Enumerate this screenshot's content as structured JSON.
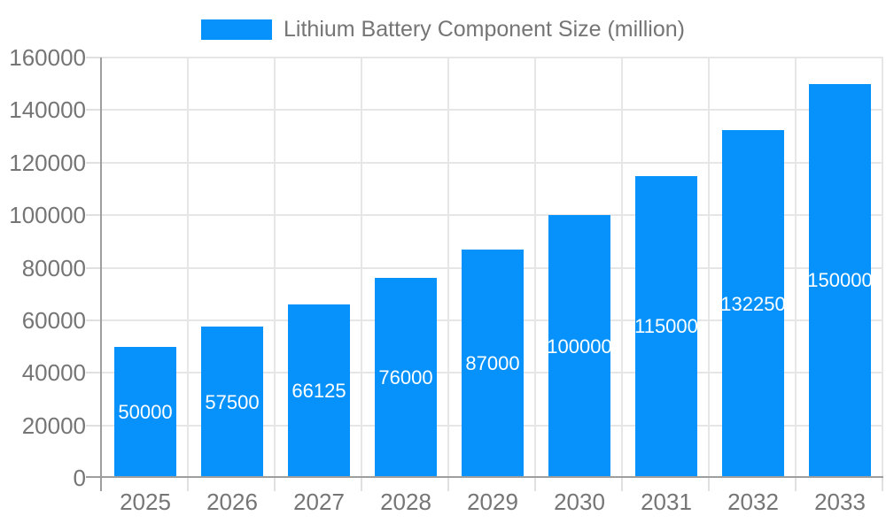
{
  "legend": {
    "label": "Lithium Battery Component Size (million)"
  },
  "colors": {
    "bar": "#0692fa",
    "grid_line": "#e6e6e6",
    "tick_line": "#e0e0e0",
    "axis_line": "#9e9e9e",
    "axis_text": "#757575",
    "bar_label_text": "#ffffff",
    "background": "#ffffff"
  },
  "chart_data": {
    "type": "bar",
    "title": "Lithium Battery Component Size (million)",
    "series_name": "Lithium Battery Component Size (million)",
    "categories": [
      "2025",
      "2026",
      "2027",
      "2028",
      "2029",
      "2030",
      "2031",
      "2032",
      "2033"
    ],
    "values": [
      50000,
      57500,
      66125,
      76000,
      87000,
      100000,
      115000,
      132250,
      150000
    ],
    "data_labels": [
      "50000",
      "57500",
      "66125",
      "76000",
      "87000",
      "100000",
      "115000",
      "132250",
      "150000"
    ],
    "data_label_position": "inside-center",
    "xlabel": "",
    "ylabel": "",
    "ylim": [
      0,
      160000
    ],
    "yticks": [
      0,
      20000,
      40000,
      60000,
      80000,
      100000,
      120000,
      140000,
      160000
    ],
    "grid": true,
    "legend_position": "top-center"
  }
}
